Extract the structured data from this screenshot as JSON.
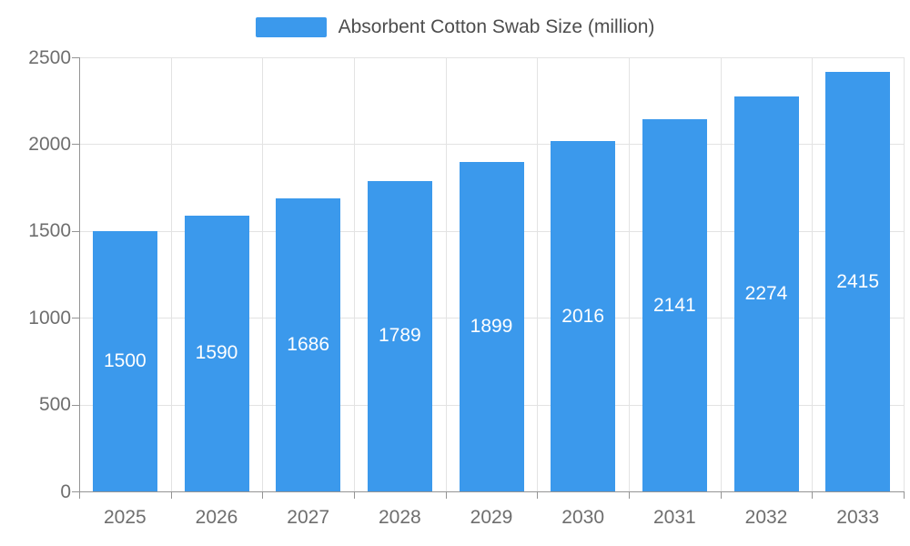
{
  "chart_data": {
    "type": "bar",
    "title": "Absorbent Cotton Swab Size (million)",
    "categories": [
      "2025",
      "2026",
      "2027",
      "2028",
      "2029",
      "2030",
      "2031",
      "2032",
      "2033"
    ],
    "values": [
      1500,
      1590,
      1686,
      1789,
      1899,
      2016,
      2141,
      2274,
      2415
    ],
    "xlabel": "",
    "ylabel": "",
    "ylim": [
      0,
      2500
    ],
    "yticks": [
      0,
      500,
      1000,
      1500,
      2000,
      2500
    ],
    "grid": true,
    "legend_position": "top-center",
    "value_label_style": "inside-center-white",
    "colors": {
      "bar": "#3b99ec",
      "grid": "#e3e3e3",
      "axis_line": "#949494",
      "axis_text": "#6e6e6e",
      "legend_text": "#4d4d4d",
      "value_text": "#ffffff",
      "background": "#ffffff"
    }
  }
}
